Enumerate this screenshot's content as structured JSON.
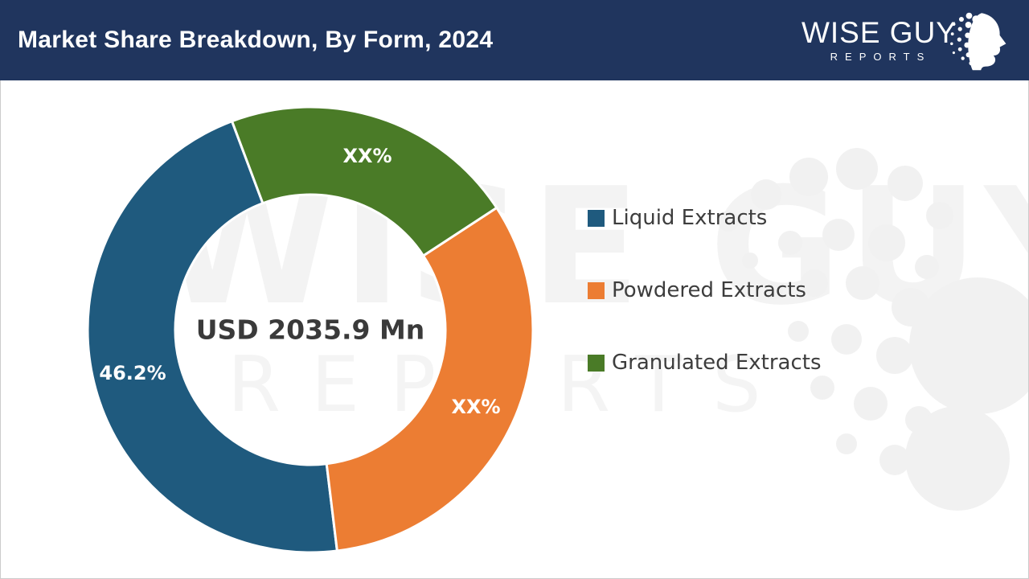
{
  "header": {
    "title": "Market Share Breakdown, By Form, 2024",
    "logo": {
      "brand": "WISE GUY",
      "sub": "REPORTS"
    }
  },
  "watermark": {
    "brand": "WISE GUY",
    "sub": "REPORTS"
  },
  "colors": {
    "header_bg": "#20355E",
    "title_text": "#FFFFFF",
    "center_text": "#3A3A3A",
    "legend_text": "#3D3D3D",
    "page_border": "#CCCCCC",
    "watermark": "#F3F3F3"
  },
  "chart_data": {
    "type": "pie",
    "subtype": "donut",
    "title": "Market Share Breakdown, By Form, 2024",
    "center_label": "USD 2035.9 Mn",
    "categories": [
      "Liquid Extracts",
      "Powdered Extracts",
      "Granulated Extracts"
    ],
    "values": [
      46.2,
      32.3,
      21.5
    ],
    "percent_labels": [
      "46.2%",
      "XX%",
      "XX%"
    ],
    "colors": [
      "#1F5A7E",
      "#EC7D33",
      "#4A7B27"
    ],
    "start_angle_deg": 110.6,
    "direction": "counterclockwise",
    "inner_radius_ratio": 0.6,
    "legend_position": "right",
    "grid": false
  }
}
